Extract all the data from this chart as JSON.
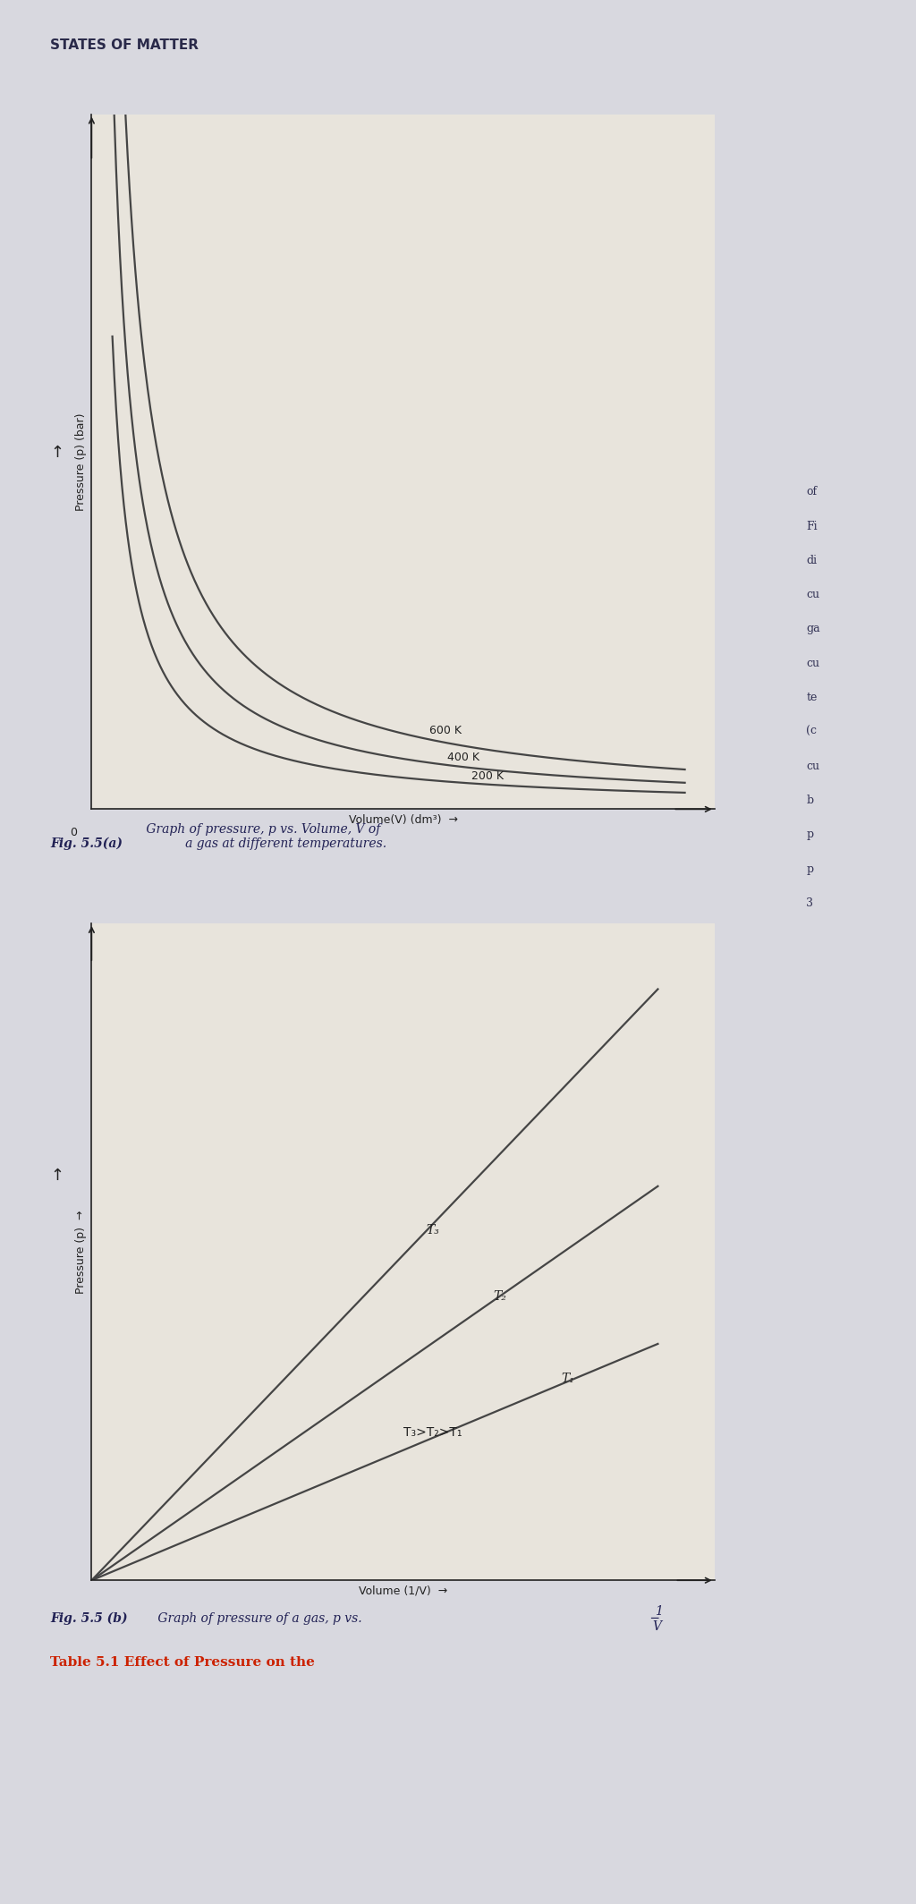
{
  "page_bg": "#d8d8df",
  "header_text": "STATES OF MATTER",
  "header_color": "#2a2a4a",
  "header_fontsize": 11,
  "fig_a_caption_bold": "Fig. 5.5(a)",
  "fig_a_caption_rest": " Graph of pressure, p vs. Volume, V of\n           a gas at different temperatures.",
  "fig_b_caption_bold": "Fig. 5.5 (b)",
  "fig_b_caption_rest": " Graph of pressure of a gas, p vs. ",
  "fig_b_caption_frac": "1\nV",
  "table_caption": "Table 5.1 Effect of Pressure on the",
  "fig_a_ylabel": "Pressure (p) (bar)",
  "fig_a_xlabel": "Volume(V) (dm³)  →",
  "fig_b_ylabel": "Pressure (p)  →",
  "fig_b_xlabel": "Volume (1/V)  →",
  "fig_a_curves": [
    {
      "label": "600 K",
      "k": 6.0
    },
    {
      "label": "400 K",
      "k": 4.0
    },
    {
      "label": "200 K",
      "k": 2.5
    }
  ],
  "fig_b_lines": [
    {
      "label": "T₃",
      "slope": 4.5
    },
    {
      "label": "T₂",
      "slope": 3.0
    },
    {
      "label": "T₁",
      "slope": 1.8
    }
  ],
  "fig_b_annotation": "T₃>T₂>T₁",
  "right_col_texts": [
    "of",
    "Fi",
    "di",
    "cu",
    "ga",
    "cu",
    "te",
    "(c",
    "cu",
    "b",
    "p",
    "p",
    "3"
  ],
  "curve_color": "#454545",
  "line_color": "#454545",
  "plot_bg": "#e8e4dc",
  "axis_color": "#222222",
  "label_color": "#222222",
  "caption_color": "#222255",
  "caption_fontsize": 10,
  "axis_label_fontsize": 9,
  "curve_lw": 1.6,
  "right_col_color": "#333355",
  "table_color": "#cc2200"
}
